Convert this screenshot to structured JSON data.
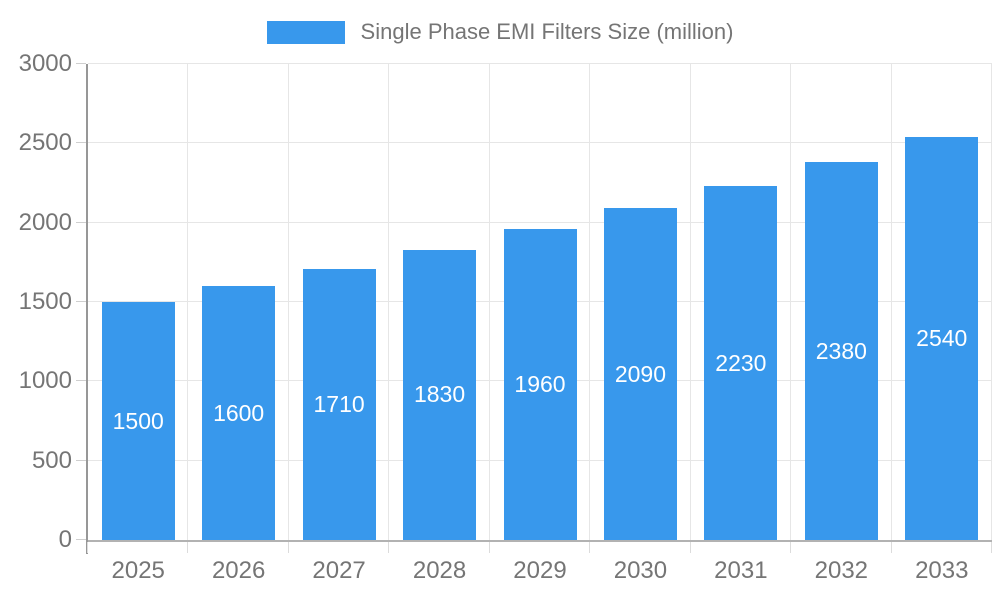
{
  "legend": {
    "label": "Single Phase EMI Filters Size (million)"
  },
  "colors": {
    "bar": "#3898ec",
    "grid": "#e6e6e6",
    "axis_line": "#979797",
    "baseline": "#b2b2b2",
    "tick": "#cfcfcf",
    "axis_text": "#757575",
    "value_text": "#ffffff"
  },
  "chart_data": {
    "type": "bar",
    "title": "Single Phase EMI Filters Size (million)",
    "series_name": "Single Phase EMI Filters Size (million)",
    "categories": [
      "2025",
      "2026",
      "2027",
      "2028",
      "2029",
      "2030",
      "2031",
      "2032",
      "2033"
    ],
    "values": [
      1500,
      1600,
      1710,
      1830,
      1960,
      2090,
      2230,
      2380,
      2540
    ],
    "value_labels_position": "inside-center",
    "xlabel": "",
    "ylabel": "",
    "ylim": [
      0,
      3000
    ],
    "yticks": [
      0,
      500,
      1000,
      1500,
      2000,
      2500,
      3000
    ],
    "grid": true,
    "legend_position": "top"
  }
}
